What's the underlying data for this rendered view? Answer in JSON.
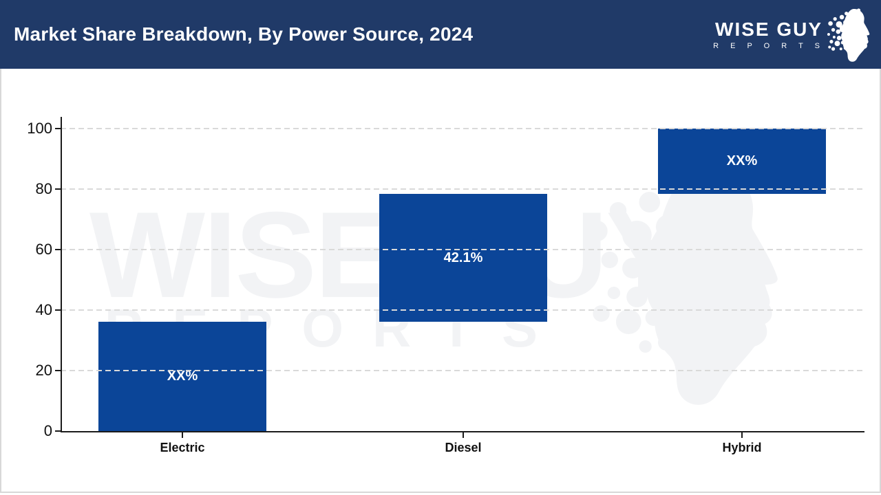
{
  "header": {
    "title": "Market Share Breakdown, By Power Source, 2024",
    "logo": {
      "line1": "WISE GUY",
      "line2": "R E P O R T S"
    }
  },
  "watermark": {
    "line1": "WISE GUY",
    "line2": "R E P O R T S"
  },
  "colors": {
    "header_bg": "#203a68",
    "bar": "#0b4598",
    "grid": "#d9d9d9",
    "axis": "#1a1a1a",
    "bar_label": "#ffffff",
    "watermark": "#f2f3f5"
  },
  "chart_data": {
    "type": "bar",
    "subtype": "waterfall (floating percentage segments stacking to 100)",
    "title": "Market Share Breakdown, By Power Source, 2024",
    "categories": [
      "Electric",
      "Diesel",
      "Hybrid"
    ],
    "segments": [
      {
        "category": "Electric",
        "start": 0,
        "end": 36.2,
        "value_label": "XX%"
      },
      {
        "category": "Diesel",
        "start": 36.2,
        "end": 78.3,
        "value_label": "42.1%"
      },
      {
        "category": "Hybrid",
        "start": 78.3,
        "end": 100,
        "value_label": "XX%"
      }
    ],
    "yticks": [
      0,
      20,
      40,
      60,
      80,
      100
    ],
    "ylim": [
      0,
      104
    ],
    "xlabel": "",
    "ylabel": "",
    "grid": "horizontal dashed lines drawn above bars",
    "legend": "none"
  }
}
